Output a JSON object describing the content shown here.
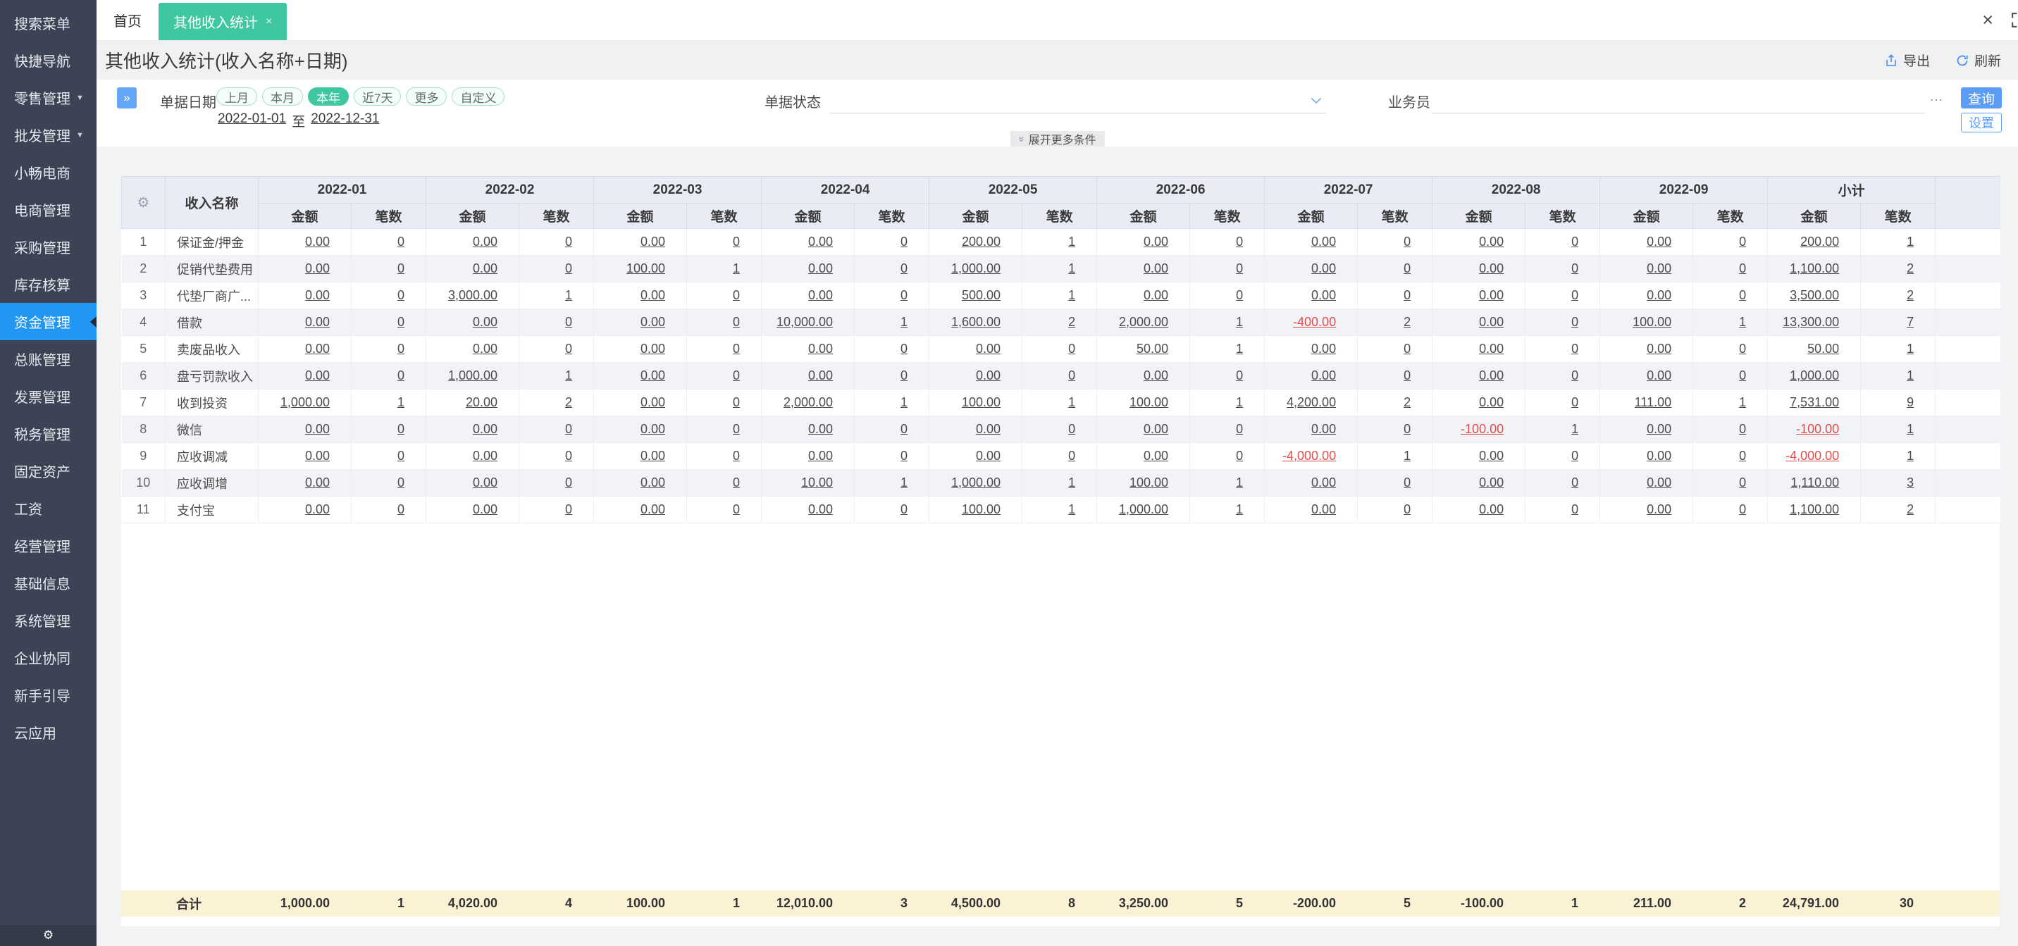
{
  "colors": {
    "accent_blue": "#2196f3",
    "tab_green": "#3ec7a0",
    "negative_red": "#e0504c",
    "footer_bg": "#fbf2d6",
    "header_bg": "#e9ecf4"
  },
  "icons": {
    "close": "×",
    "tab_close": "×",
    "collapse": "»",
    "double_chevron": "»",
    "gear": "⚙",
    "sidebar_gear": "⚙",
    "dropdown_arrow": "▼",
    "dots": "..."
  },
  "sidebar": {
    "items": [
      {
        "id": "search-menu",
        "label": "搜索菜单"
      },
      {
        "id": "quick-nav",
        "label": "快捷导航"
      },
      {
        "id": "retail",
        "label": "零售管理",
        "arrow": true
      },
      {
        "id": "wholesale",
        "label": "批发管理",
        "arrow": true
      },
      {
        "id": "xiaochang-ec",
        "label": "小畅电商"
      },
      {
        "id": "ecommerce",
        "label": "电商管理"
      },
      {
        "id": "purchase",
        "label": "采购管理"
      },
      {
        "id": "inventory",
        "label": "库存核算"
      },
      {
        "id": "funds",
        "label": "资金管理",
        "active": true
      },
      {
        "id": "ledger",
        "label": "总账管理"
      },
      {
        "id": "invoice",
        "label": "发票管理"
      },
      {
        "id": "tax",
        "label": "税务管理"
      },
      {
        "id": "fixed-assets",
        "label": "固定资产"
      },
      {
        "id": "payroll",
        "label": "工资"
      },
      {
        "id": "operation",
        "label": "经营管理"
      },
      {
        "id": "base-info",
        "label": "基础信息"
      },
      {
        "id": "system",
        "label": "系统管理"
      },
      {
        "id": "collaboration",
        "label": "企业协同"
      },
      {
        "id": "guide",
        "label": "新手引导"
      },
      {
        "id": "cloud-apps",
        "label": "云应用"
      }
    ]
  },
  "tabs": {
    "home": "首页",
    "active_label": "其他收入统计"
  },
  "page": {
    "title": "其他收入统计(收入名称+日期)",
    "export_label": "导出",
    "refresh_label": "刷新"
  },
  "filters": {
    "date_label": "单据日期",
    "quick_options": [
      "上月",
      "本月",
      "本年",
      "近7天",
      "更多",
      "自定义"
    ],
    "active_quick": "本年",
    "date_from": "2022-01-01",
    "date_sep": "至",
    "date_to": "2022-12-31",
    "status_label": "单据状态",
    "salesman_label": "业务员",
    "search_button": "查询",
    "settings_button": "设置",
    "expand_more": "展开更多条件"
  },
  "table": {
    "name_header": "收入名称",
    "amount_header": "金额",
    "count_header": "笔数",
    "months": [
      "2022-01",
      "2022-02",
      "2022-03",
      "2022-04",
      "2022-05",
      "2022-06",
      "2022-07",
      "2022-08",
      "2022-09",
      "小计"
    ],
    "rows": [
      {
        "name": "保证金/押金",
        "values": [
          "0.00",
          "0",
          "0.00",
          "0",
          "0.00",
          "0",
          "0.00",
          "0",
          "200.00",
          "1",
          "0.00",
          "0",
          "0.00",
          "0",
          "0.00",
          "0",
          "0.00",
          "0",
          "200.00",
          "1"
        ]
      },
      {
        "name": "促销代垫费用",
        "values": [
          "0.00",
          "0",
          "0.00",
          "0",
          "100.00",
          "1",
          "0.00",
          "0",
          "1,000.00",
          "1",
          "0.00",
          "0",
          "0.00",
          "0",
          "0.00",
          "0",
          "0.00",
          "0",
          "1,100.00",
          "2"
        ]
      },
      {
        "name": "代垫厂商广...",
        "values": [
          "0.00",
          "0",
          "3,000.00",
          "1",
          "0.00",
          "0",
          "0.00",
          "0",
          "500.00",
          "1",
          "0.00",
          "0",
          "0.00",
          "0",
          "0.00",
          "0",
          "0.00",
          "0",
          "3,500.00",
          "2"
        ]
      },
      {
        "name": "借款",
        "values": [
          "0.00",
          "0",
          "0.00",
          "0",
          "0.00",
          "0",
          "10,000.00",
          "1",
          "1,600.00",
          "2",
          "2,000.00",
          "1",
          "-400.00",
          "2",
          "0.00",
          "0",
          "100.00",
          "1",
          "13,300.00",
          "7"
        ]
      },
      {
        "name": "卖废品收入",
        "values": [
          "0.00",
          "0",
          "0.00",
          "0",
          "0.00",
          "0",
          "0.00",
          "0",
          "0.00",
          "0",
          "50.00",
          "1",
          "0.00",
          "0",
          "0.00",
          "0",
          "0.00",
          "0",
          "50.00",
          "1"
        ]
      },
      {
        "name": "盘亏罚款收入",
        "values": [
          "0.00",
          "0",
          "1,000.00",
          "1",
          "0.00",
          "0",
          "0.00",
          "0",
          "0.00",
          "0",
          "0.00",
          "0",
          "0.00",
          "0",
          "0.00",
          "0",
          "0.00",
          "0",
          "1,000.00",
          "1"
        ]
      },
      {
        "name": "收到投资",
        "values": [
          "1,000.00",
          "1",
          "20.00",
          "2",
          "0.00",
          "0",
          "2,000.00",
          "1",
          "100.00",
          "1",
          "100.00",
          "1",
          "4,200.00",
          "2",
          "0.00",
          "0",
          "111.00",
          "1",
          "7,531.00",
          "9"
        ]
      },
      {
        "name": "微信",
        "values": [
          "0.00",
          "0",
          "0.00",
          "0",
          "0.00",
          "0",
          "0.00",
          "0",
          "0.00",
          "0",
          "0.00",
          "0",
          "0.00",
          "0",
          "-100.00",
          "1",
          "0.00",
          "0",
          "-100.00",
          "1"
        ]
      },
      {
        "name": "应收调减",
        "values": [
          "0.00",
          "0",
          "0.00",
          "0",
          "0.00",
          "0",
          "0.00",
          "0",
          "0.00",
          "0",
          "0.00",
          "0",
          "-4,000.00",
          "1",
          "0.00",
          "0",
          "0.00",
          "0",
          "-4,000.00",
          "1"
        ]
      },
      {
        "name": "应收调增",
        "values": [
          "0.00",
          "0",
          "0.00",
          "0",
          "0.00",
          "0",
          "10.00",
          "1",
          "1,000.00",
          "1",
          "100.00",
          "1",
          "0.00",
          "0",
          "0.00",
          "0",
          "0.00",
          "0",
          "1,110.00",
          "3"
        ]
      },
      {
        "name": "支付宝",
        "values": [
          "0.00",
          "0",
          "0.00",
          "0",
          "0.00",
          "0",
          "0.00",
          "0",
          "100.00",
          "1",
          "1,000.00",
          "1",
          "0.00",
          "0",
          "0.00",
          "0",
          "0.00",
          "0",
          "1,100.00",
          "2"
        ]
      }
    ],
    "total_label": "合计",
    "totals": [
      "1,000.00",
      "1",
      "4,020.00",
      "4",
      "100.00",
      "1",
      "12,010.00",
      "3",
      "4,500.00",
      "8",
      "3,250.00",
      "5",
      "-200.00",
      "5",
      "-100.00",
      "1",
      "211.00",
      "2",
      "24,791.00",
      "30"
    ]
  }
}
